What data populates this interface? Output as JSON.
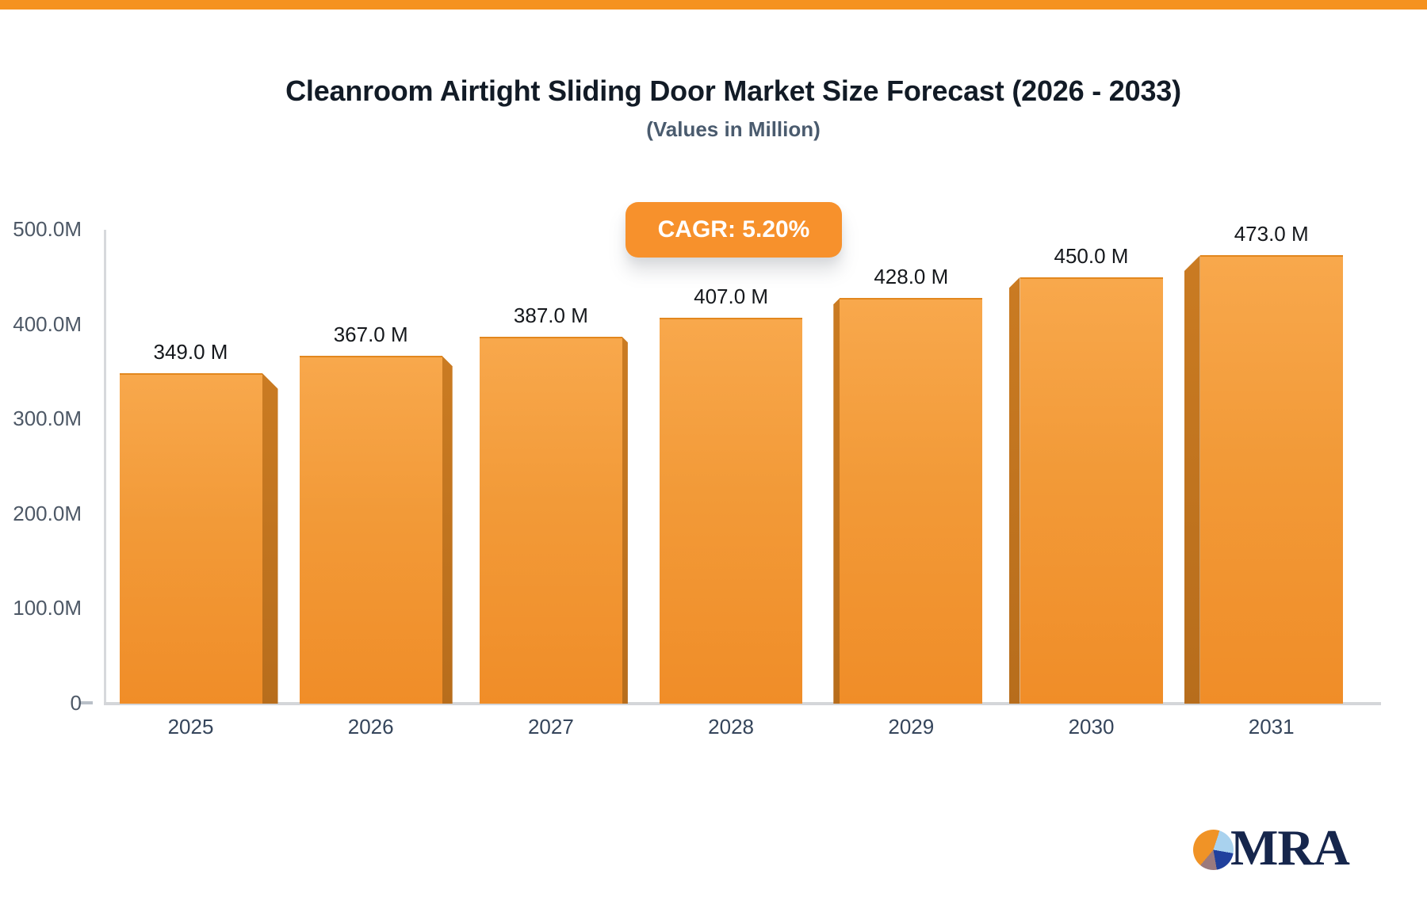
{
  "page": {
    "background": "#ffffff",
    "top_bar_color": "#f5921f"
  },
  "header": {
    "title": "Cleanroom Airtight Sliding Door Market Size Forecast (2026 - 2033)",
    "subtitle": "(Values in Million)"
  },
  "badge": {
    "label": "CAGR: 5.20%",
    "color": "#f7912c",
    "text_color": "#ffffff"
  },
  "chart_data": {
    "type": "bar",
    "title": "Cleanroom Airtight Sliding Door Market Size Forecast (2026 - 2033)",
    "subtitle": "(Values in Million)",
    "unit": "Million",
    "cagr_label": "CAGR: 5.20%",
    "categories": [
      "2025",
      "2026",
      "2027",
      "2028",
      "2029",
      "2030",
      "2031"
    ],
    "values": [
      349,
      367,
      387,
      407,
      428,
      450,
      473
    ],
    "value_labels": [
      "349.0 M",
      "367.0 M",
      "387.0 M",
      "407.0 M",
      "428.0 M",
      "450.0 M",
      "473.0 M"
    ],
    "y_ticks": [
      {
        "label": "500.0M",
        "value": 500
      },
      {
        "label": "400.0M",
        "value": 400
      },
      {
        "label": "300.0M",
        "value": 300
      },
      {
        "label": "200.0M",
        "value": 200
      },
      {
        "label": "100.0M",
        "value": 100
      },
      {
        "label": "0",
        "value": 0
      }
    ],
    "ylim": [
      0,
      500
    ],
    "grid": false,
    "legend": null,
    "bar_color_top": "#f8a84c",
    "bar_color_bottom": "#f08d28",
    "bar_side_color": "#bd701e",
    "axis_color": "#d4d6d9"
  },
  "logo": {
    "text": "MRA",
    "text_color": "#16264c",
    "pie_colors": {
      "orange": "#f09326",
      "light_blue": "#a9d2ee",
      "dark_blue": "#20409d",
      "mauve": "#9b7a7e"
    }
  }
}
